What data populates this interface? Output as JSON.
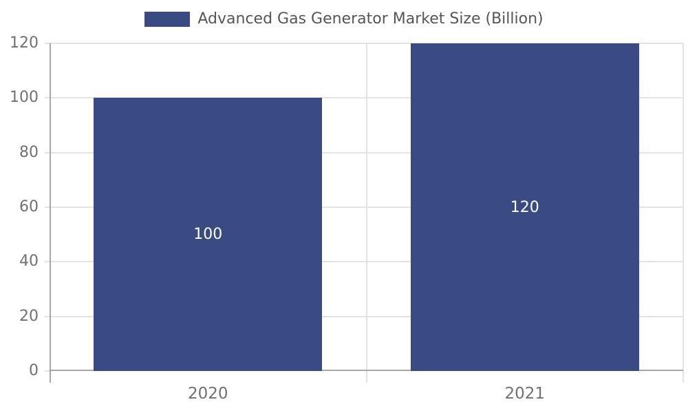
{
  "chart_data": {
    "type": "bar",
    "title": "",
    "legend": "Advanced Gas Generator Market Size (Billion)",
    "legend_position": "top-center",
    "categories": [
      "2020",
      "2021"
    ],
    "values": [
      100,
      120
    ],
    "bar_labels": [
      "100",
      "120"
    ],
    "yticks": [
      0,
      20,
      40,
      60,
      80,
      100,
      120
    ],
    "ylim": [
      0,
      120
    ],
    "xlabel": "",
    "ylabel": "",
    "grid": true,
    "colors": {
      "bar": "#3A4A82",
      "bar_label": "#FFFFFF",
      "grid": "#E3E3E3",
      "axis": "#A6A6A6",
      "tick_label": "#707070",
      "legend_text": "#555555",
      "background": "#FFFFFF"
    }
  }
}
